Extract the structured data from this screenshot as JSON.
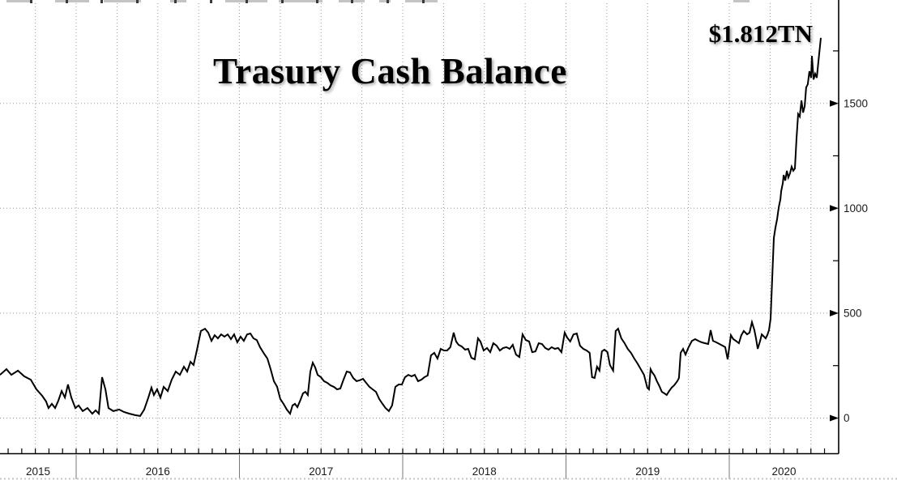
{
  "chart_data": {
    "type": "line",
    "title": "Trasury Cash Balance",
    "annotation": "$1.812TN",
    "last_value_billions": 1812,
    "grid": "dotted",
    "legend": "none",
    "x_axis": {
      "position": "bottom",
      "tick_labels": [
        "2015",
        "2016",
        "2017",
        "2018",
        "2019",
        "2020"
      ],
      "minor_ticks": "monthly",
      "gridlines": "quarterly",
      "range_decimal_years": [
        2015.53,
        2020.67
      ]
    },
    "y_axis": {
      "position": "right",
      "tick_labels": [
        "0",
        "500",
        "1000",
        "1500"
      ],
      "tick_values": [
        0,
        500,
        1000,
        1500
      ],
      "minor_tick_values": [
        250,
        750,
        1250,
        1750
      ],
      "range": [
        0,
        2000
      ],
      "units": "USD billions"
    },
    "series": [
      {
        "name": "Treasury Cash Balance",
        "points": [
          [
            2015.533,
            206
          ],
          [
            2015.573,
            233
          ],
          [
            2015.603,
            206
          ],
          [
            2015.643,
            226
          ],
          [
            2015.682,
            199
          ],
          [
            2015.722,
            183
          ],
          [
            2015.757,
            137
          ],
          [
            2015.792,
            106
          ],
          [
            2015.816,
            79
          ],
          [
            2015.831,
            48
          ],
          [
            2015.851,
            68
          ],
          [
            2015.871,
            48
          ],
          [
            2015.891,
            83
          ],
          [
            2015.911,
            129
          ],
          [
            2015.931,
            98
          ],
          [
            2015.95,
            160
          ],
          [
            2015.97,
            98
          ],
          [
            2015.995,
            48
          ],
          [
            2016.015,
            60
          ],
          [
            2016.04,
            33
          ],
          [
            2016.069,
            48
          ],
          [
            2016.099,
            21
          ],
          [
            2016.119,
            37
          ],
          [
            2016.139,
            21
          ],
          [
            2016.159,
            195
          ],
          [
            2016.179,
            137
          ],
          [
            2016.198,
            48
          ],
          [
            2016.228,
            33
          ],
          [
            2016.263,
            41
          ],
          [
            2016.293,
            29
          ],
          [
            2016.327,
            21
          ],
          [
            2016.362,
            14
          ],
          [
            2016.392,
            10
          ],
          [
            2016.417,
            41
          ],
          [
            2016.442,
            98
          ],
          [
            2016.461,
            145
          ],
          [
            2016.476,
            110
          ],
          [
            2016.496,
            137
          ],
          [
            2016.516,
            98
          ],
          [
            2016.536,
            149
          ],
          [
            2016.561,
            129
          ],
          [
            2016.585,
            183
          ],
          [
            2016.61,
            222
          ],
          [
            2016.635,
            206
          ],
          [
            2016.66,
            245
          ],
          [
            2016.68,
            222
          ],
          [
            2016.7,
            268
          ],
          [
            2016.719,
            253
          ],
          [
            2016.739,
            322
          ],
          [
            2016.764,
            415
          ],
          [
            2016.789,
            426
          ],
          [
            2016.809,
            407
          ],
          [
            2016.829,
            368
          ],
          [
            2016.848,
            395
          ],
          [
            2016.868,
            380
          ],
          [
            2016.888,
            399
          ],
          [
            2016.908,
            388
          ],
          [
            2016.928,
            399
          ],
          [
            2016.948,
            376
          ],
          [
            2016.967,
            399
          ],
          [
            2016.987,
            361
          ],
          [
            2017.007,
            388
          ],
          [
            2017.027,
            368
          ],
          [
            2017.047,
            399
          ],
          [
            2017.067,
            403
          ],
          [
            2017.086,
            380
          ],
          [
            2017.106,
            372
          ],
          [
            2017.126,
            338
          ],
          [
            2017.151,
            307
          ],
          [
            2017.171,
            284
          ],
          [
            2017.191,
            233
          ],
          [
            2017.211,
            176
          ],
          [
            2017.231,
            149
          ],
          [
            2017.25,
            91
          ],
          [
            2017.27,
            68
          ],
          [
            2017.29,
            41
          ],
          [
            2017.31,
            21
          ],
          [
            2017.325,
            60
          ],
          [
            2017.34,
            68
          ],
          [
            2017.355,
            52
          ],
          [
            2017.374,
            87
          ],
          [
            2017.389,
            118
          ],
          [
            2017.404,
            125
          ],
          [
            2017.419,
            110
          ],
          [
            2017.434,
            222
          ],
          [
            2017.449,
            264
          ],
          [
            2017.464,
            241
          ],
          [
            2017.479,
            206
          ],
          [
            2017.499,
            195
          ],
          [
            2017.518,
            176
          ],
          [
            2017.538,
            168
          ],
          [
            2017.558,
            156
          ],
          [
            2017.578,
            149
          ],
          [
            2017.598,
            137
          ],
          [
            2017.618,
            141
          ],
          [
            2017.637,
            183
          ],
          [
            2017.657,
            222
          ],
          [
            2017.677,
            218
          ],
          [
            2017.697,
            191
          ],
          [
            2017.717,
            176
          ],
          [
            2017.737,
            180
          ],
          [
            2017.757,
            187
          ],
          [
            2017.776,
            168
          ],
          [
            2017.796,
            149
          ],
          [
            2017.816,
            137
          ],
          [
            2017.836,
            125
          ],
          [
            2017.856,
            91
          ],
          [
            2017.876,
            68
          ],
          [
            2017.895,
            48
          ],
          [
            2017.915,
            33
          ],
          [
            2017.935,
            60
          ],
          [
            2017.955,
            149
          ],
          [
            2017.975,
            160
          ],
          [
            2017.995,
            160
          ],
          [
            2018.014,
            195
          ],
          [
            2018.034,
            206
          ],
          [
            2018.054,
            199
          ],
          [
            2018.074,
            206
          ],
          [
            2018.094,
            176
          ],
          [
            2018.114,
            183
          ],
          [
            2018.133,
            195
          ],
          [
            2018.153,
            203
          ],
          [
            2018.173,
            299
          ],
          [
            2018.193,
            311
          ],
          [
            2018.213,
            284
          ],
          [
            2018.233,
            330
          ],
          [
            2018.253,
            322
          ],
          [
            2018.272,
            322
          ],
          [
            2018.292,
            338
          ],
          [
            2018.312,
            407
          ],
          [
            2018.327,
            365
          ],
          [
            2018.342,
            349
          ],
          [
            2018.362,
            341
          ],
          [
            2018.382,
            326
          ],
          [
            2018.401,
            330
          ],
          [
            2018.421,
            287
          ],
          [
            2018.441,
            280
          ],
          [
            2018.461,
            380
          ],
          [
            2018.476,
            365
          ],
          [
            2018.496,
            322
          ],
          [
            2018.516,
            334
          ],
          [
            2018.536,
            314
          ],
          [
            2018.555,
            357
          ],
          [
            2018.575,
            345
          ],
          [
            2018.595,
            322
          ],
          [
            2018.615,
            334
          ],
          [
            2018.635,
            338
          ],
          [
            2018.655,
            330
          ],
          [
            2018.674,
            349
          ],
          [
            2018.694,
            303
          ],
          [
            2018.714,
            291
          ],
          [
            2018.734,
            399
          ],
          [
            2018.754,
            372
          ],
          [
            2018.774,
            365
          ],
          [
            2018.793,
            314
          ],
          [
            2018.813,
            318
          ],
          [
            2018.833,
            357
          ],
          [
            2018.853,
            353
          ],
          [
            2018.873,
            334
          ],
          [
            2018.893,
            326
          ],
          [
            2018.912,
            338
          ],
          [
            2018.932,
            330
          ],
          [
            2018.952,
            334
          ],
          [
            2018.972,
            314
          ],
          [
            2018.992,
            407
          ],
          [
            2019.007,
            384
          ],
          [
            2019.026,
            365
          ],
          [
            2019.046,
            399
          ],
          [
            2019.066,
            403
          ],
          [
            2019.086,
            345
          ],
          [
            2019.106,
            330
          ],
          [
            2019.126,
            322
          ],
          [
            2019.145,
            311
          ],
          [
            2019.16,
            195
          ],
          [
            2019.175,
            191
          ],
          [
            2019.19,
            245
          ],
          [
            2019.205,
            226
          ],
          [
            2019.22,
            318
          ],
          [
            2019.235,
            326
          ],
          [
            2019.254,
            314
          ],
          [
            2019.269,
            253
          ],
          [
            2019.289,
            226
          ],
          [
            2019.304,
            415
          ],
          [
            2019.319,
            426
          ],
          [
            2019.339,
            380
          ],
          [
            2019.359,
            357
          ],
          [
            2019.378,
            330
          ],
          [
            2019.398,
            311
          ],
          [
            2019.418,
            284
          ],
          [
            2019.438,
            260
          ],
          [
            2019.458,
            233
          ],
          [
            2019.478,
            206
          ],
          [
            2019.498,
            145
          ],
          [
            2019.508,
            137
          ],
          [
            2019.518,
            233
          ],
          [
            2019.528,
            218
          ],
          [
            2019.542,
            203
          ],
          [
            2019.557,
            176
          ],
          [
            2019.572,
            152
          ],
          [
            2019.587,
            125
          ],
          [
            2019.602,
            118
          ],
          [
            2019.617,
            110
          ],
          [
            2019.632,
            129
          ],
          [
            2019.647,
            145
          ],
          [
            2019.662,
            156
          ],
          [
            2019.682,
            176
          ],
          [
            2019.692,
            191
          ],
          [
            2019.702,
            311
          ],
          [
            2019.717,
            330
          ],
          [
            2019.732,
            303
          ],
          [
            2019.751,
            338
          ],
          [
            2019.771,
            368
          ],
          [
            2019.791,
            376
          ],
          [
            2019.811,
            368
          ],
          [
            2019.831,
            361
          ],
          [
            2019.851,
            357
          ],
          [
            2019.871,
            353
          ],
          [
            2019.886,
            419
          ],
          [
            2019.9,
            368
          ],
          [
            2019.92,
            361
          ],
          [
            2019.94,
            353
          ],
          [
            2019.96,
            345
          ],
          [
            2019.975,
            338
          ],
          [
            2019.99,
            280
          ],
          [
            2020.01,
            395
          ],
          [
            2020.025,
            376
          ],
          [
            2020.04,
            368
          ],
          [
            2020.059,
            357
          ],
          [
            2020.074,
            395
          ],
          [
            2020.089,
            415
          ],
          [
            2020.109,
            399
          ],
          [
            2020.124,
            407
          ],
          [
            2020.139,
            457
          ],
          [
            2020.154,
            419
          ],
          [
            2020.164,
            380
          ],
          [
            2020.174,
            330
          ],
          [
            2020.189,
            368
          ],
          [
            2020.199,
            399
          ],
          [
            2020.213,
            388
          ],
          [
            2020.223,
            380
          ],
          [
            2020.233,
            395
          ],
          [
            2020.243,
            419
          ],
          [
            2020.253,
            473
          ],
          [
            2020.263,
            665
          ],
          [
            2020.273,
            858
          ],
          [
            2020.283,
            908
          ],
          [
            2020.293,
            947
          ],
          [
            2020.303,
            1005
          ],
          [
            2020.313,
            1043
          ],
          [
            2020.318,
            1082
          ],
          [
            2020.328,
            1120
          ],
          [
            2020.333,
            1159
          ],
          [
            2020.343,
            1132
          ],
          [
            2020.353,
            1179
          ],
          [
            2020.362,
            1147
          ],
          [
            2020.372,
            1167
          ],
          [
            2020.382,
            1198
          ],
          [
            2020.392,
            1179
          ],
          [
            2020.402,
            1190
          ],
          [
            2020.412,
            1333
          ],
          [
            2020.422,
            1449
          ],
          [
            2020.432,
            1437
          ],
          [
            2020.442,
            1514
          ],
          [
            2020.452,
            1456
          ],
          [
            2020.462,
            1487
          ],
          [
            2020.471,
            1576
          ],
          [
            2020.481,
            1591
          ],
          [
            2020.491,
            1653
          ],
          [
            2020.501,
            1622
          ],
          [
            2020.506,
            1726
          ],
          [
            2020.516,
            1614
          ],
          [
            2020.526,
            1641
          ],
          [
            2020.536,
            1622
          ],
          [
            2020.546,
            1699
          ],
          [
            2020.561,
            1812
          ]
        ]
      }
    ]
  },
  "styles": {
    "background": "#ffffff",
    "line_color": "#000000",
    "grid_color": "#999999",
    "axis_color": "#000000",
    "label_color": "#1a1a1a",
    "separator_color": "#777777",
    "artifact_light": "#c4c4c4",
    "artifact_dark": "#3a3a3a"
  },
  "artifacts": {
    "description": "cropped text remnants along top edge and faint strip along bottom edge",
    "top_light_marks": [
      [
        8,
        30
      ],
      [
        68,
        42
      ],
      [
        128,
        46
      ],
      [
        210,
        20
      ],
      [
        278,
        52
      ],
      [
        344,
        54
      ],
      [
        418,
        32
      ],
      [
        468,
        14
      ],
      [
        500,
        40
      ],
      [
        905,
        20
      ]
    ],
    "top_dark_marks": [
      37,
      81,
      124,
      168,
      215,
      259,
      303,
      347,
      390,
      433,
      477,
      521
    ]
  }
}
